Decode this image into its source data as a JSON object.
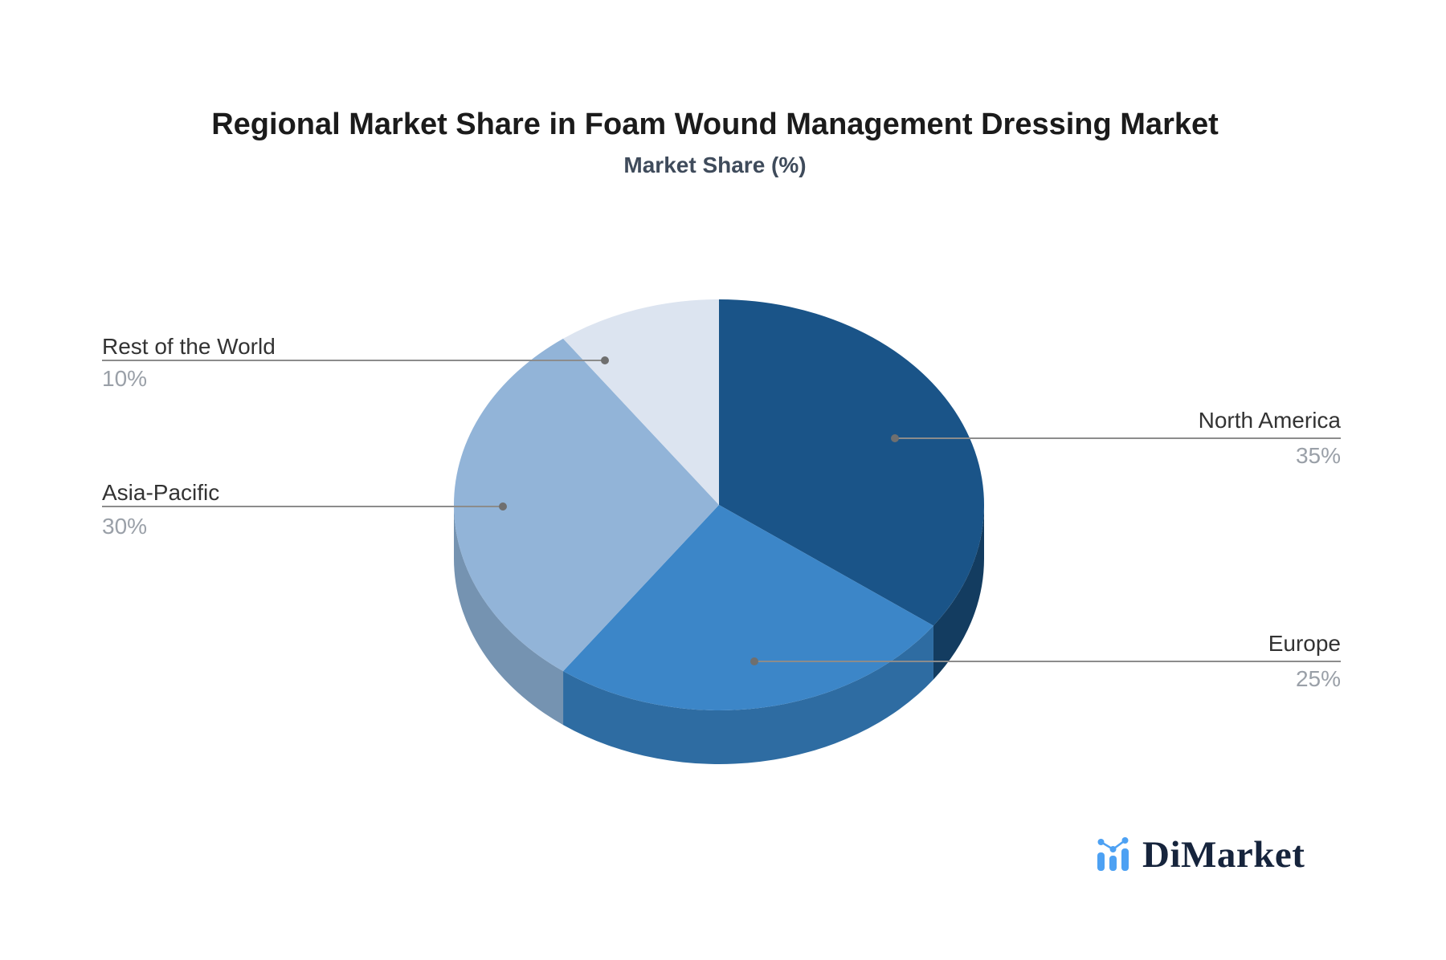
{
  "page": {
    "title": "Regional Market Share in Foam Wound Management Dressing Market",
    "subtitle": "Market Share (%)"
  },
  "chart_data": {
    "type": "pie",
    "title": "Regional Market Share in Foam Wound Management Dressing Market",
    "subtitle": "Market Share (%)",
    "unit": "%",
    "effect": "3d",
    "start_angle_deg": 0,
    "direction": "clockwise",
    "legend_position": "none (leader-line callout labels)",
    "background": "#ffffff",
    "slices": [
      {
        "label": "North America",
        "value": 35,
        "pct_label": "35%",
        "color": "#1a5488",
        "side_color": "#133c60"
      },
      {
        "label": "Europe",
        "value": 25,
        "pct_label": "25%",
        "color": "#3c86c8",
        "side_color": "#2e6ca2"
      },
      {
        "label": "Asia-Pacific",
        "value": 30,
        "pct_label": "30%",
        "color": "#92b4d8",
        "side_color": "#7593b1"
      },
      {
        "label": "Rest of the World",
        "value": 10,
        "pct_label": "10%",
        "color": "#dce4f0",
        "side_color": "#b6c4d6"
      }
    ]
  },
  "callouts": {
    "line_color": "#8c8c8c",
    "dot_color": "#6f6f6f",
    "label_color": "#333333",
    "value_color": "#9aa0a8"
  },
  "brand": {
    "name": "DiMarket",
    "icon": "bar-chart-trend-logo-icon",
    "icon_color": "#4da1f3",
    "text_color": "#16243c"
  }
}
